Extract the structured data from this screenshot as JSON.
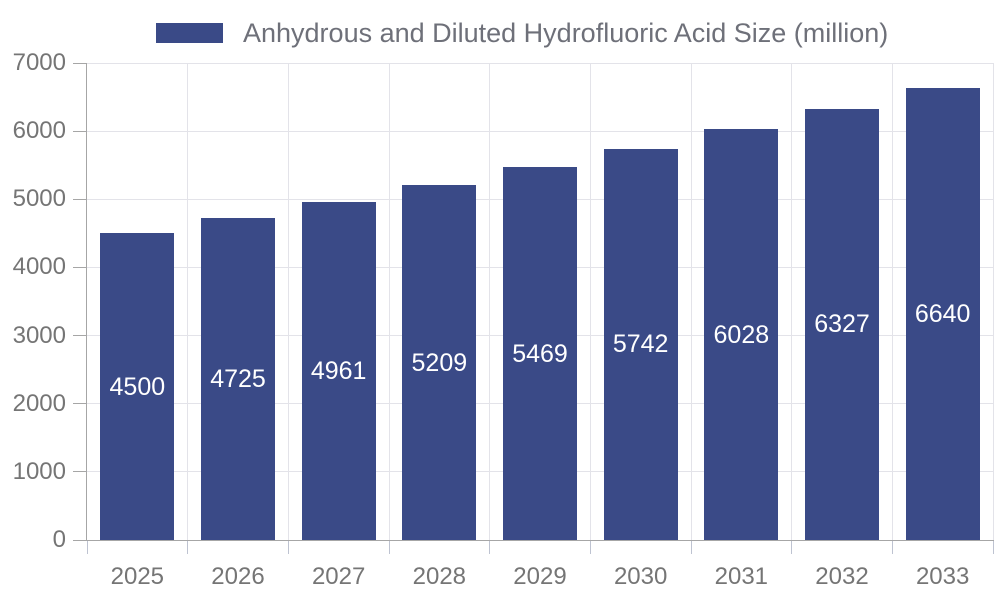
{
  "chart_data": {
    "type": "bar",
    "title": "Anhydrous and Diluted Hydrofluoric Acid Size (million)",
    "categories": [
      "2025",
      "2026",
      "2027",
      "2028",
      "2029",
      "2030",
      "2031",
      "2032",
      "2033"
    ],
    "values": [
      4500,
      4725,
      4961,
      5209,
      5469,
      5742,
      6028,
      6327,
      6640
    ],
    "yticks": [
      0,
      1000,
      2000,
      3000,
      4000,
      5000,
      6000,
      7000
    ],
    "ylim": [
      0,
      7000
    ],
    "xlabel": "",
    "ylabel": "",
    "grid": true,
    "legend_position": "top-left",
    "value_labels": "inside-center",
    "colors": {
      "bar": "#3A4A87",
      "axis_label": "#757575",
      "legend_text": "#6E7079",
      "value_label": "#FFFFFF",
      "gridline": "#E3E3E9",
      "axis_line": "#A6A6A6",
      "x_tick": "#BEC3D1"
    }
  }
}
